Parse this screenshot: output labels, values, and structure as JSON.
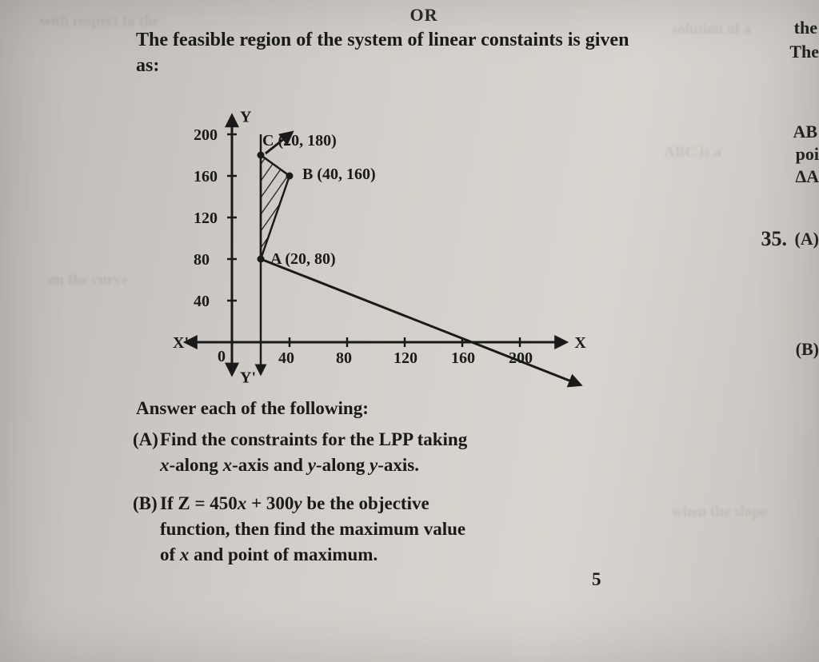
{
  "or_label": "OR",
  "prompt": "The feasible region of the system of linear constaints is given as:",
  "answer_prompt": "Answer each of the following:",
  "subA_label": "(A)",
  "subA_text": "Find the constraints for the LPP taking x-along x-axis and y-along y-axis.",
  "subB_label": "(B)",
  "subB_text": "If Z = 450x + 300y be the objective function, then find the maximum value of x and point of maximum.",
  "marks": "5",
  "right_fragments": {
    "f1": "the",
    "f2": "The",
    "f3": "AB",
    "f4": "poi",
    "f5": "ΔA",
    "f6": "35.",
    "f7": "(A)",
    "f8": "(B)"
  },
  "graph": {
    "type": "line-region",
    "background_color": "transparent",
    "axis_color": "#1a1a1a",
    "axis_width": 3,
    "hatch_color": "#1a1a1a",
    "hatch_width": 2.5,
    "font_size_tick": 20,
    "font_size_label": 20,
    "x_axis_label": "X",
    "x_axis_neg_label": "X'",
    "y_axis_label": "Y",
    "y_axis_neg_label": "Y'",
    "origin_label": "0",
    "x_ticks": [
      40,
      80,
      120,
      160,
      200
    ],
    "y_ticks": [
      40,
      80,
      120,
      160,
      200
    ],
    "xlim": [
      -40,
      240
    ],
    "ylim": [
      -40,
      220
    ],
    "points": {
      "A": {
        "label": "A (20, 80)",
        "x": 20,
        "y": 80
      },
      "B": {
        "label": "B (40, 160)",
        "x": 40,
        "y": 160
      },
      "C": {
        "label": "C (20, 180)",
        "x": 20,
        "y": 180
      }
    },
    "point_radius": 4.5,
    "point_color": "#1a1a1a",
    "vertical_line_x": 20,
    "lineBA_extent": {
      "x1": 20,
      "y1": 80,
      "x2": 240,
      "y2": -40
    },
    "lineCB_arrow": true
  }
}
